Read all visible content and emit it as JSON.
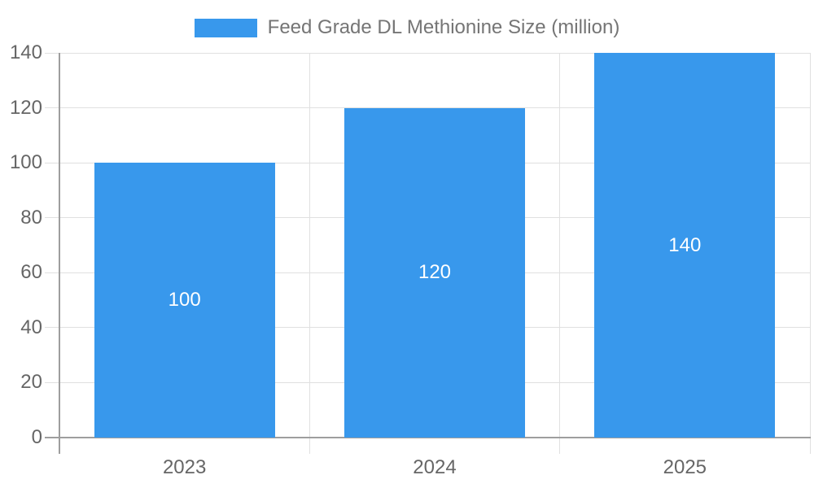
{
  "legend": {
    "label": "Feed Grade DL Methionine Size (million)"
  },
  "chart_data": {
    "type": "bar",
    "title": "Feed Grade DL Methionine Size (million)",
    "categories": [
      "2023",
      "2024",
      "2025"
    ],
    "series": [
      {
        "name": "Feed Grade DL Methionine Size (million)",
        "values": [
          100,
          120,
          140
        ]
      }
    ],
    "bar_labels": [
      "100",
      "120",
      "140"
    ],
    "yticks": [
      0,
      20,
      40,
      60,
      80,
      100,
      120,
      140
    ],
    "ytick_labels": [
      "0",
      "20",
      "40",
      "60",
      "80",
      "100",
      "120",
      "140"
    ],
    "ylim": [
      0,
      140
    ],
    "xlabel": "",
    "ylabel": "",
    "grid": true,
    "legend_position": "top",
    "colors": {
      "bar": "#3898EC",
      "grid": "#E0E0E0",
      "axis": "#9E9E9E",
      "tick_label": "#666666",
      "legend_text": "#757575",
      "value_label": "#FFFFFF",
      "background": "#FFFFFF"
    }
  }
}
